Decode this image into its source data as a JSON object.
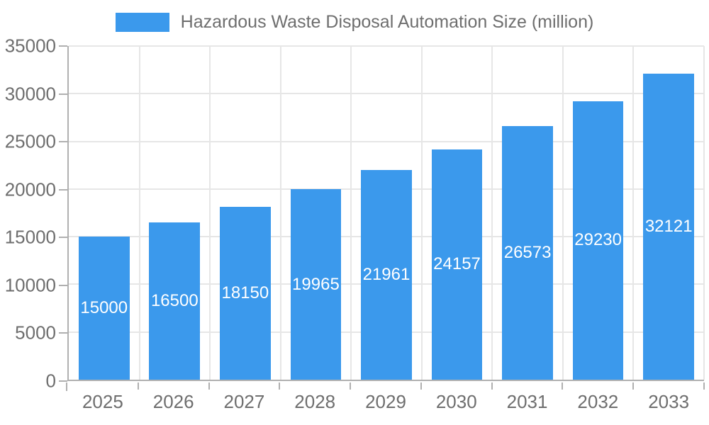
{
  "legend": {
    "label": "Hazardous Waste Disposal Automation Size (million)"
  },
  "chart_data": {
    "type": "bar",
    "title": "Hazardous Waste Disposal Automation Size (million)",
    "categories": [
      "2025",
      "2026",
      "2027",
      "2028",
      "2029",
      "2030",
      "2031",
      "2032",
      "2033"
    ],
    "values": [
      15000,
      16500,
      18150,
      19965,
      21961,
      24157,
      26573,
      29230,
      32121
    ],
    "bar_value_labels": [
      "15000",
      "16500",
      "18150",
      "19965",
      "21961",
      "24157",
      "26573",
      "29230",
      "32121"
    ],
    "xlabel": "",
    "ylabel": "",
    "ylim": [
      0,
      35000
    ],
    "ytick_step": 5000,
    "ytick_labels": [
      "0",
      "5000",
      "10000",
      "15000",
      "20000",
      "25000",
      "30000",
      "35000"
    ],
    "grid": true,
    "legend_position": "top-center",
    "bar_label_position": "inside-center",
    "colors": {
      "bar": "#3B99EC",
      "grid": "#E6E6E6",
      "axis": "#B0B0B0",
      "text": "#6E6E6E",
      "bar_label_text": "#FFFFFF",
      "background": "#FFFFFF"
    }
  }
}
